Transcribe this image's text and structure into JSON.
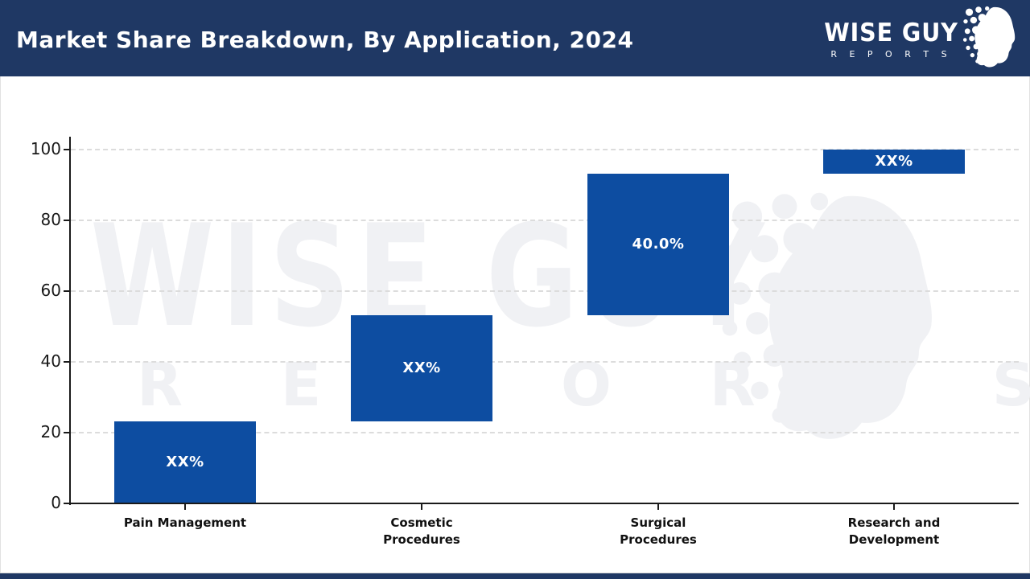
{
  "header": {
    "title": "Market Share Breakdown, By Application, 2024",
    "logo": {
      "brand": "WISE GUY",
      "subtitle": "R E P O R T S"
    }
  },
  "watermark": {
    "brand": "WISE GUY",
    "subtitle": "R E P O R T S"
  },
  "colors": {
    "header_bg": "#1f3864",
    "bar_fill": "#0d4da1",
    "bar_label": "#ffffff",
    "gridline": "#dcdcdc",
    "axis": "#1a1a1a",
    "tick_label": "#1a1a1a",
    "category_label": "#111111",
    "watermark": "#f0f1f4",
    "title_text": "#ffffff"
  },
  "chart_data": {
    "type": "bar",
    "subtype": "waterfall",
    "title": "Market Share Breakdown, By Application, 2024",
    "categories": [
      "Pain Management",
      "Cosmetic Procedures",
      "Surgical Procedures",
      "Research and Development"
    ],
    "categories_lines": [
      [
        "Pain Management"
      ],
      [
        "Cosmetic",
        "Procedures"
      ],
      [
        "Surgical",
        "Procedures"
      ],
      [
        "Research and",
        "Development"
      ]
    ],
    "segments": [
      {
        "category": "Pain Management",
        "start": 0,
        "end": 23.2,
        "value_label": "XX%"
      },
      {
        "category": "Cosmetic Procedures",
        "start": 23.2,
        "end": 53.2,
        "value_label": "XX%"
      },
      {
        "category": "Surgical Procedures",
        "start": 53.2,
        "end": 93.2,
        "value_label": "40.0%"
      },
      {
        "category": "Research and Development",
        "start": 93.2,
        "end": 100,
        "value_label": "XX%"
      }
    ],
    "xlabel": "",
    "ylabel": "",
    "ylim": [
      0,
      100
    ],
    "yticks": [
      0,
      20,
      40,
      60,
      80,
      100
    ],
    "grid": "horizontal-dashed",
    "legend_position": "none"
  }
}
